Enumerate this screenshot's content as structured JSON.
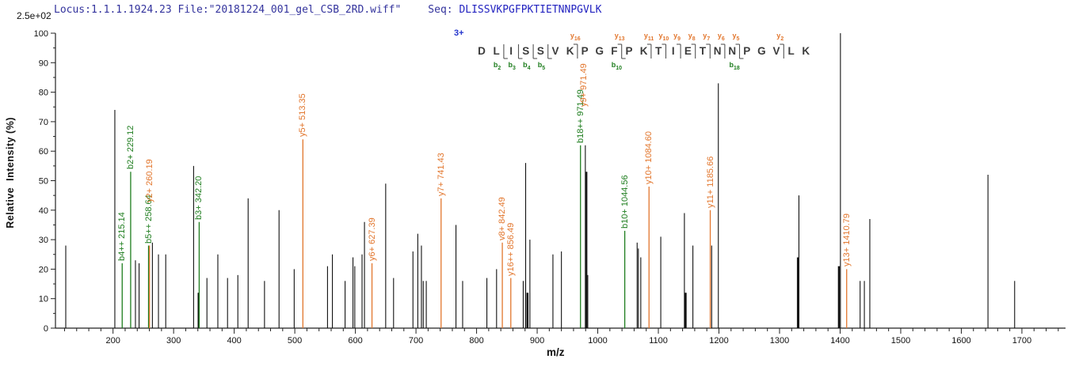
{
  "header": {
    "locus_file": "Locus:1.1.1.1924.23 File:\"20181224_001_gel_CSB_2RD.wiff\"",
    "seq_label": "Seq:",
    "sequence": "DLISSVKPGFPKTIETNNPGVLK"
  },
  "peptide": {
    "charge": "3+",
    "sequence": "DLISSVKPGFPKTIETNNPGVLK",
    "fragment_bonds": [
      {
        "after": 2,
        "b": "b2"
      },
      {
        "after": 3,
        "b": "b3"
      },
      {
        "after": 4,
        "b": "b4"
      },
      {
        "after": 5,
        "b": "b5"
      },
      {
        "after": 7,
        "y": "y16"
      },
      {
        "after": 10,
        "b": "b10",
        "y": "y13"
      },
      {
        "after": 12,
        "y": "y11"
      },
      {
        "after": 13,
        "y": "y10"
      },
      {
        "after": 14,
        "y": "y9"
      },
      {
        "after": 15,
        "y": "y8"
      },
      {
        "after": 16,
        "y": "y7"
      },
      {
        "after": 17,
        "y": "y6"
      },
      {
        "after": 18,
        "b": "b18",
        "y": "y5"
      },
      {
        "after": 21,
        "y": "y2"
      }
    ]
  },
  "colors": {
    "b_ion": "#1e7d1e",
    "y_ion": "#e2762d",
    "peak": "#111111",
    "axis": "#222222",
    "header_text": "#33339d",
    "sequence_text": "#2323c0",
    "charge_text": "#2233cc"
  },
  "chart_data": {
    "type": "bar",
    "subtype": "ms2-centroid-spectrum",
    "xlabel": "m/z",
    "ylabel": "Relative  Intensity (%)",
    "y_scale_note": "2.5e+02",
    "xlim": [
      105,
      1772
    ],
    "ylim": [
      0,
      100
    ],
    "x_major_tick_start": 200,
    "x_major_tick_end": 1700,
    "x_major_tick_step": 100,
    "x_minor_tick_step": 20,
    "y_major_tick_step": 10,
    "y_minor_tick_step": 5,
    "grid": false,
    "peaks": [
      [
        122,
        28
      ],
      [
        203,
        74
      ],
      [
        237,
        23
      ],
      [
        243,
        22
      ],
      [
        265,
        29
      ],
      [
        275,
        25
      ],
      [
        287,
        25
      ],
      [
        333,
        55
      ],
      [
        341,
        12,
        2
      ],
      [
        355,
        17
      ],
      [
        373,
        25
      ],
      [
        389,
        17
      ],
      [
        406,
        18
      ],
      [
        423,
        44
      ],
      [
        450,
        16
      ],
      [
        474,
        40
      ],
      [
        499,
        20
      ],
      [
        554,
        21
      ],
      [
        562,
        25
      ],
      [
        583,
        16
      ],
      [
        596,
        24
      ],
      [
        599,
        21
      ],
      [
        611,
        25
      ],
      [
        615,
        36
      ],
      [
        650,
        49
      ],
      [
        663,
        17
      ],
      [
        695,
        26
      ],
      [
        703,
        32
      ],
      [
        709,
        28
      ],
      [
        712,
        16
      ],
      [
        717,
        16
      ],
      [
        766,
        35
      ],
      [
        777,
        16
      ],
      [
        817,
        17
      ],
      [
        833,
        20
      ],
      [
        877,
        16
      ],
      [
        881,
        56
      ],
      [
        884,
        12,
        2.5
      ],
      [
        888,
        30
      ],
      [
        926,
        25
      ],
      [
        940,
        26
      ],
      [
        979.5,
        62
      ],
      [
        981.5,
        53,
        2
      ],
      [
        983.5,
        18
      ],
      [
        1065,
        29
      ],
      [
        1067,
        27
      ],
      [
        1071,
        24
      ],
      [
        1104,
        31
      ],
      [
        1143,
        39
      ],
      [
        1145,
        12,
        2.5
      ],
      [
        1157,
        28
      ],
      [
        1188,
        28
      ],
      [
        1199,
        83
      ],
      [
        1330,
        24,
        2
      ],
      [
        1332,
        45
      ],
      [
        1398,
        21,
        2.5
      ],
      [
        1400.5,
        100
      ],
      [
        1433,
        16
      ],
      [
        1440,
        16
      ],
      [
        1449,
        37
      ],
      [
        1644,
        52
      ],
      [
        1688,
        16
      ]
    ],
    "annotated_peaks": [
      {
        "label": "b4++ 215.14",
        "mz": 215.14,
        "intensity": 22,
        "series": "b"
      },
      {
        "label": "b2+ 229.12",
        "mz": 229.12,
        "intensity": 53,
        "series": "b"
      },
      {
        "label": "b5++ 258.64",
        "mz": 258.64,
        "intensity": 28,
        "series": "b"
      },
      {
        "label": "y2+ 260.19",
        "mz": 260.19,
        "intensity": 28,
        "series": "y",
        "label_gap": 52
      },
      {
        "label": "b3+ 342.20",
        "mz": 342.2,
        "intensity": 36,
        "series": "b"
      },
      {
        "label": "y5+ 513.35",
        "mz": 513.35,
        "intensity": 64,
        "series": "y"
      },
      {
        "label": "y6+ 627.39",
        "mz": 627.39,
        "intensity": 22,
        "series": "y"
      },
      {
        "label": "y7+ 741.43",
        "mz": 741.43,
        "intensity": 44,
        "series": "y"
      },
      {
        "label": "v8+ 842.49",
        "mz": 842.49,
        "intensity": 29,
        "series": "y"
      },
      {
        "label": "y16++ 856.49",
        "mz": 856.49,
        "intensity": 17,
        "series": "y"
      },
      {
        "label": "b18++ 971.49",
        "mz": 971.49,
        "intensity": 62,
        "series": "b"
      },
      {
        "label": "y9+ 971.49",
        "mz": 971.49,
        "display_mz": 977,
        "intensity": 0,
        "series": "y",
        "label_only": true,
        "label_bottom_y": 135
      },
      {
        "label": "b10+ 1044.56",
        "mz": 1044.56,
        "intensity": 33,
        "series": "b"
      },
      {
        "label": "y10+ 1084.60",
        "mz": 1084.6,
        "intensity": 48,
        "series": "y"
      },
      {
        "label": "y11+ 1185.66",
        "mz": 1185.66,
        "intensity": 40,
        "series": "y"
      },
      {
        "label": "y13+ 1410.79",
        "mz": 1410.79,
        "intensity": 20,
        "series": "y"
      }
    ]
  }
}
